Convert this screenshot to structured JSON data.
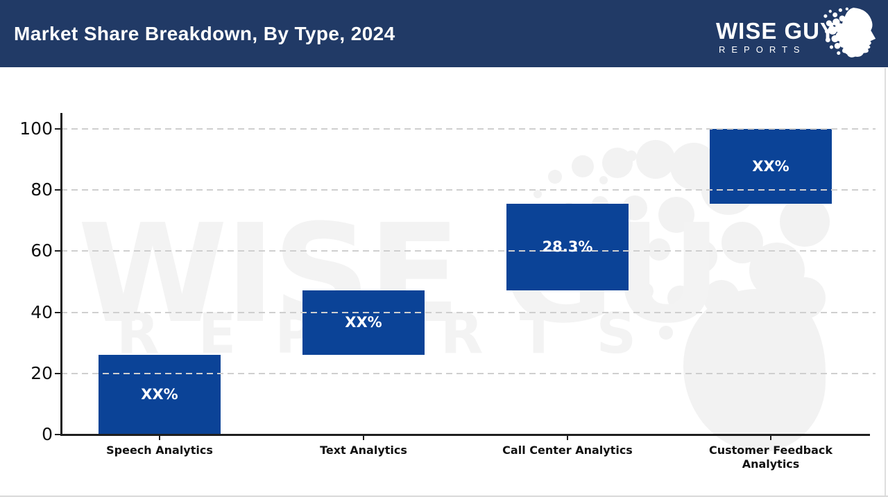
{
  "header": {
    "title": "Market Share Breakdown, By Type, 2024",
    "logo": {
      "line1": "WISE GUY",
      "line2": "REPORTS"
    },
    "bg_color": "#213a66"
  },
  "watermark": {
    "line1": "WISE GU",
    "line2": "REPORTS"
  },
  "chart_data": {
    "type": "bar",
    "variant": "waterfall",
    "title": "Market Share Breakdown, By Type, 2024",
    "categories": [
      "Speech Analytics",
      "Text Analytics",
      "Call Center Analytics",
      "Customer Feedback Analytics"
    ],
    "segments": [
      {
        "category": "Speech Analytics",
        "start": 0,
        "end": 26.1,
        "label": "XX%"
      },
      {
        "category": "Text Analytics",
        "start": 26.1,
        "end": 47.2,
        "label": "XX%"
      },
      {
        "category": "Call Center Analytics",
        "start": 47.2,
        "end": 75.5,
        "label": "28.3%"
      },
      {
        "category": "Customer Feedback Analytics",
        "start": 75.5,
        "end": 100,
        "label": "XX%"
      }
    ],
    "yticks": [
      0,
      20,
      40,
      60,
      80,
      100
    ],
    "ylim": [
      0,
      105
    ],
    "xlabel": "",
    "ylabel": "",
    "grid": "horizontal-dashed",
    "legend": "none",
    "bar_color": "#0b4397",
    "bar_label_color": "#ffffff",
    "axis_color": "#1f1f1f",
    "grid_color": "#cfcfcf"
  }
}
